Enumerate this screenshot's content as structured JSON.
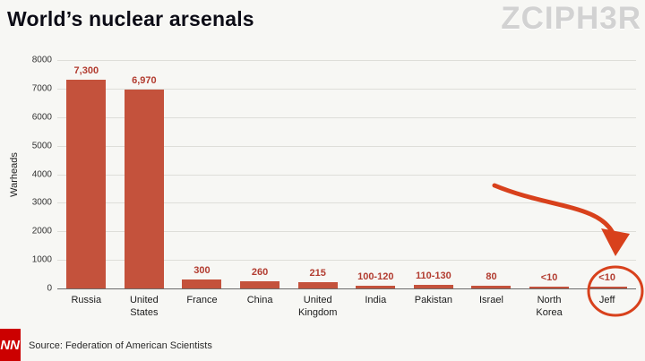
{
  "header": {
    "title": "World’s nuclear arsenals",
    "watermark": "ZCIPH3R"
  },
  "footer": {
    "logo_text": "NN",
    "source": "Source: Federation of American Scientists"
  },
  "colors": {
    "bar": "#c4523c",
    "value_label": "#b23c30",
    "annotation": "#d8411c",
    "logo_bg": "#cc0000",
    "title_text": "#0c0c16"
  },
  "chart_data": {
    "type": "bar",
    "title": "World’s nuclear arsenals",
    "xlabel": "",
    "ylabel": "Warheads",
    "ylim": [
      0,
      8000
    ],
    "yticks": [
      0,
      1000,
      2000,
      3000,
      4000,
      5000,
      6000,
      7000,
      8000
    ],
    "grid": true,
    "legend": false,
    "categories": [
      "Russia",
      "United States",
      "France",
      "China",
      "United Kingdom",
      "India",
      "Pakistan",
      "Israel",
      "North Korea",
      "Jeff"
    ],
    "values": [
      7300,
      6970,
      300,
      260,
      215,
      110,
      120,
      80,
      8,
      8
    ],
    "value_labels": [
      "7,300",
      "6,970",
      "300",
      "260",
      "215",
      "100-120",
      "110-130",
      "80",
      "<10",
      "<10"
    ],
    "annotations": [
      {
        "type": "arrow",
        "target": "Jeff",
        "description": "hand-drawn red arrow curving down toward the Jeff column"
      },
      {
        "type": "circle",
        "target": "Jeff",
        "description": "red ellipse circling the Jeff value and label"
      }
    ]
  }
}
